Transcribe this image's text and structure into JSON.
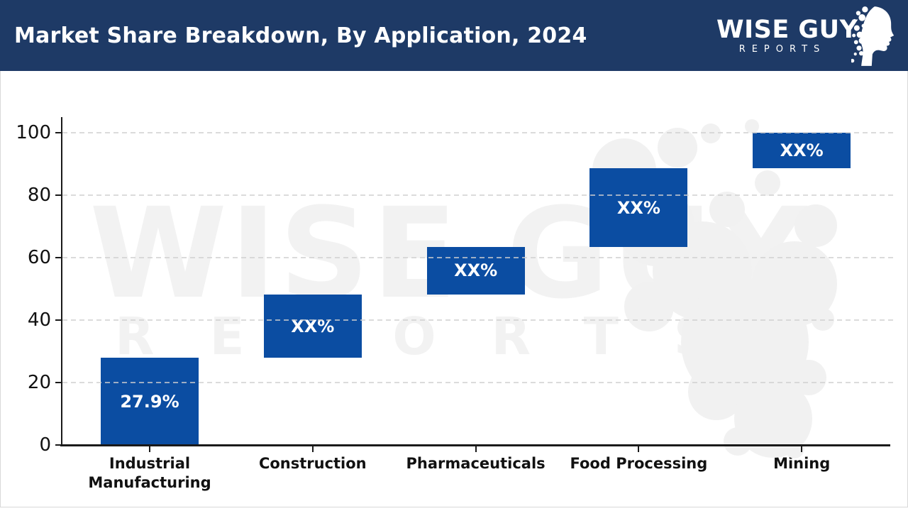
{
  "header": {
    "title": "Market Share Breakdown, By Application, 2024",
    "logo": {
      "name": "WISE GUY",
      "subname": "REPORTS"
    }
  },
  "watermark": {
    "name": "WISE GUY",
    "subname": "REPORTS"
  },
  "colors": {
    "header_bg": "#1e3a66",
    "bar": "#0b4da2",
    "bar_label": "#ffffff",
    "axis": "#1a1a1a"
  },
  "chart_data": {
    "type": "bar",
    "subtype": "waterfall",
    "title": "Market Share Breakdown, By Application, 2024",
    "xlabel": "",
    "ylabel": "",
    "ylim": [
      0,
      100
    ],
    "yticks": [
      0,
      20,
      40,
      60,
      80,
      100
    ],
    "grid": "horizontal-dashed",
    "legend": "none",
    "bar_color": "#0b4da2",
    "categories": [
      "Industrial Manufacturing",
      "Construction",
      "Pharmaceuticals",
      "Food Processing",
      "Mining"
    ],
    "segments": [
      {
        "category": "Industrial Manufacturing",
        "start": 0,
        "end": 27.9,
        "value": 27.9,
        "label": "27.9%"
      },
      {
        "category": "Construction",
        "start": 27.9,
        "end": 48.2,
        "value": 20.3,
        "label": "XX%"
      },
      {
        "category": "Pharmaceuticals",
        "start": 48.2,
        "end": 63.4,
        "value": 15.2,
        "label": "XX%"
      },
      {
        "category": "Food Processing",
        "start": 63.4,
        "end": 88.6,
        "value": 25.2,
        "label": "XX%"
      },
      {
        "category": "Mining",
        "start": 88.6,
        "end": 100,
        "value": 11.4,
        "label": "XX%"
      }
    ]
  }
}
